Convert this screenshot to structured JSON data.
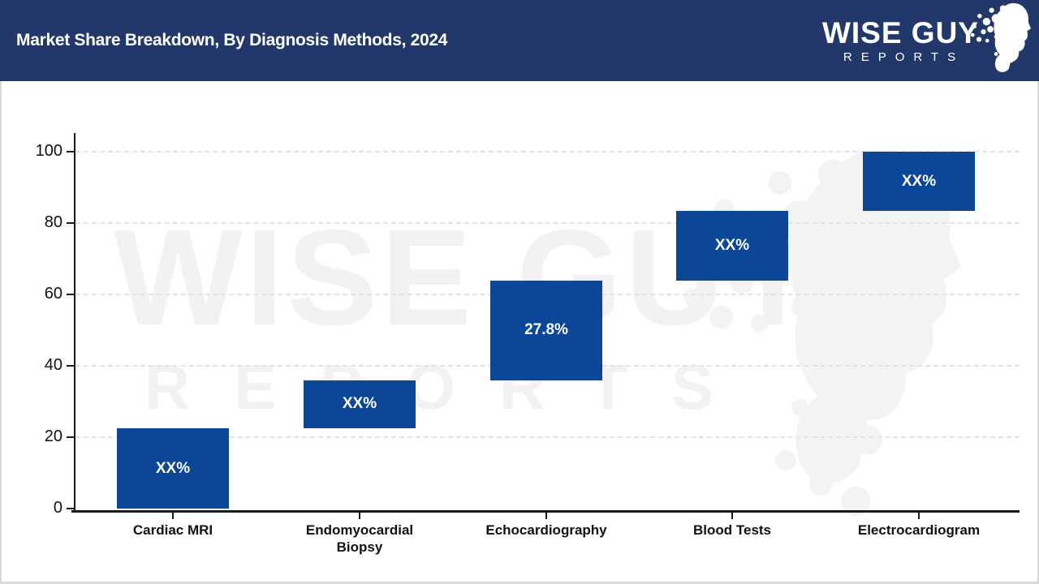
{
  "header": {
    "title": "Market Share Breakdown, By Diagnosis Methods, 2024",
    "logo": {
      "name": "WISE GUY",
      "subtitle": "REPORTS"
    }
  },
  "watermark": {
    "line1": "WISE GUY",
    "line2": "REPORTS"
  },
  "chart_data": {
    "type": "bar",
    "variant": "waterfall",
    "title": "Market Share Breakdown, By Diagnosis Methods, 2024",
    "categories": [
      "Cardiac MRI",
      "Endomyocardial Biopsy",
      "Echocardiography",
      "Blood Tests",
      "Electrocardiogram"
    ],
    "category_lines": [
      [
        "Cardiac MRI"
      ],
      [
        "Endomyocardial",
        "Biopsy"
      ],
      [
        "Echocardiography"
      ],
      [
        "Blood Tests"
      ],
      [
        "Electrocardiogram"
      ]
    ],
    "segments": [
      {
        "category": "Cardiac MRI",
        "start": 0,
        "end": 22.5,
        "value_label": "XX%"
      },
      {
        "category": "Endomyocardial Biopsy",
        "start": 22.5,
        "end": 36.1,
        "value_label": "XX%"
      },
      {
        "category": "Echocardiography",
        "start": 36.1,
        "end": 63.9,
        "value_label": "27.8%"
      },
      {
        "category": "Blood Tests",
        "start": 63.9,
        "end": 83.4,
        "value_label": "XX%"
      },
      {
        "category": "Electrocardiogram",
        "start": 83.4,
        "end": 100,
        "value_label": "XX%"
      }
    ],
    "xlabel": "",
    "ylabel": "",
    "ylim": [
      0,
      100
    ],
    "yticks": [
      0,
      20,
      40,
      60,
      80,
      100
    ],
    "grid": "horizontal-dashed",
    "legend": false,
    "bar_color": "#0c4699",
    "bar_label_color": "#ffffff"
  },
  "colors": {
    "header_bg": "#23386a",
    "bar": "#0c4699",
    "grid": "#e3e3e3",
    "axis": "#1a1a1a",
    "watermark": "#f2f2f2",
    "frame_border": "#d9d9d9"
  }
}
